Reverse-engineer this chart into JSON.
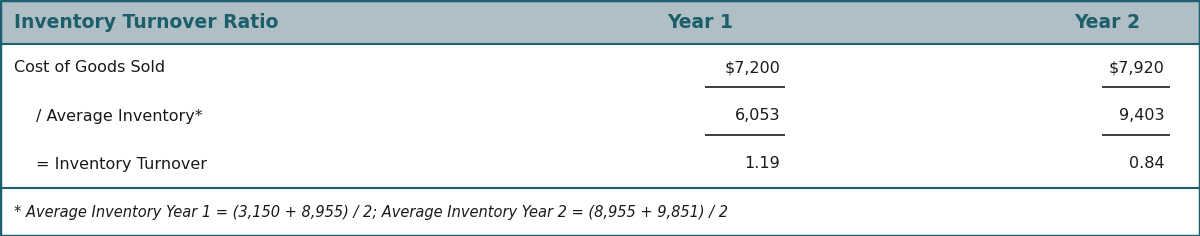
{
  "title": "Inventory Turnover Ratio",
  "col_year1": "Year 1",
  "col_year2": "Year 2",
  "rows": [
    {
      "label": "Cost of Goods Sold",
      "year1": "$7,200",
      "year2": "$7,920",
      "underline": true,
      "indent": 0
    },
    {
      "label": "/ Average Inventory*",
      "year1": "6,053",
      "year2": "9,403",
      "underline": true,
      "indent": 1
    },
    {
      "label": "= Inventory Turnover",
      "year1": "1.19",
      "year2": "0.84",
      "underline": false,
      "indent": 1
    }
  ],
  "footnote": "* Average Inventory Year 1 = (3,150 + 8,955) / 2; Average Inventory Year 2 = (8,955 + 9,851) / 2",
  "header_bg": "#B0BEC5",
  "header_text": "#1C5F6B",
  "body_bg": "#FFFFFF",
  "footnote_bg": "#FFFFFF",
  "border_color": "#1C6070",
  "text_color": "#1a1a1a",
  "font_family": "DejaVu Sans",
  "fig_width": 12.0,
  "fig_height": 2.36,
  "dpi": 100
}
